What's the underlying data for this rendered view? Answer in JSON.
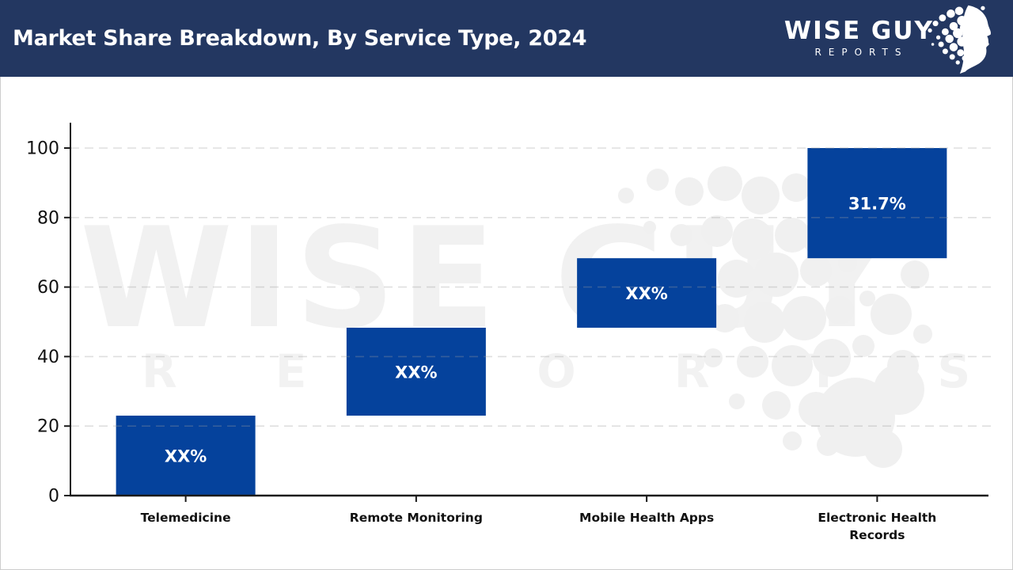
{
  "header": {
    "title": "Market Share Breakdown, By Service Type, 2024",
    "logo": {
      "line1": "WISE GUY",
      "line2": "REPORTS"
    }
  },
  "watermark": {
    "line1": "WISE GUY",
    "line2": "R E P O R T S"
  },
  "colors": {
    "header_bg": "#233761",
    "bar_blue": "#05429c",
    "grid_gray": "#9a9a9a",
    "axis_dark": "#1a1a1a",
    "watermark_gray": "#f1f1f1"
  },
  "chart_data": {
    "type": "bar",
    "variant": "waterfall-floating-bars",
    "title": "Market Share Breakdown, By Service Type, 2024",
    "categories": [
      "Telemedicine",
      "Remote Monitoring",
      "Mobile Health Apps",
      "Electronic Health Records"
    ],
    "category_lines": [
      [
        "Telemedicine"
      ],
      [
        "Remote Monitoring"
      ],
      [
        "Mobile Health Apps"
      ],
      [
        "Electronic Health",
        "Records"
      ]
    ],
    "segments": [
      {
        "start": 0,
        "end": 23,
        "height": 23,
        "value_label": "XX%"
      },
      {
        "start": 23,
        "end": 48.3,
        "height": 25.3,
        "value_label": "XX%"
      },
      {
        "start": 48.3,
        "end": 68.3,
        "height": 20,
        "value_label": "XX%"
      },
      {
        "start": 68.3,
        "end": 100,
        "height": 31.7,
        "value_label": "31.7%"
      }
    ],
    "xlabel": "",
    "ylabel": "",
    "ylim": [
      0,
      100
    ],
    "yticks": [
      0,
      20,
      40,
      60,
      80,
      100
    ],
    "grid": "horizontal-dashed",
    "legend": "none",
    "bar_color": "#05429c",
    "value_label_color": "#ffffff",
    "axis_color": "#1a1a1a",
    "tick_label_color": "#111111"
  }
}
